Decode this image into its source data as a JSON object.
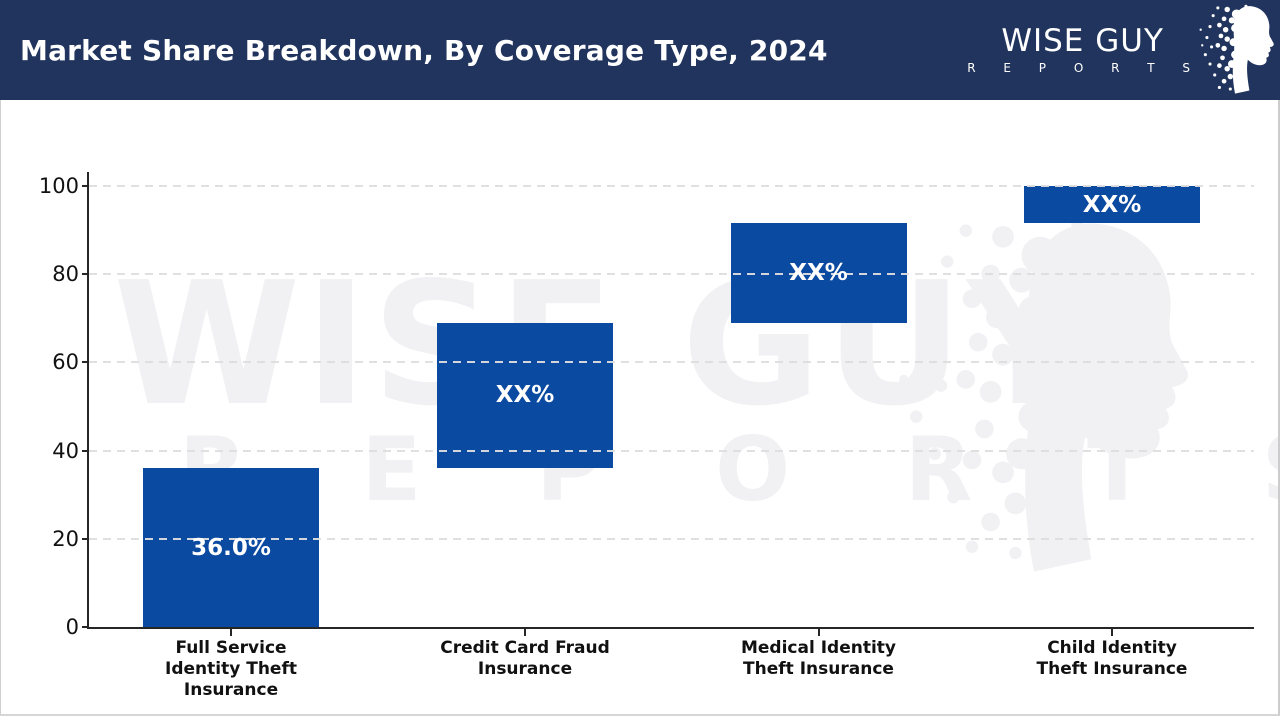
{
  "header": {
    "title": "Market Share Breakdown, By Coverage Type, 2024",
    "logo": {
      "wordmark": "WISE GUY",
      "subtext": "R E P O R T S"
    }
  },
  "watermark": {
    "line1": "WISE GUY",
    "line2": "R E P O R T S"
  },
  "chart_data": {
    "type": "bar",
    "subtype": "waterfall",
    "title": "Market Share Breakdown, By Coverage Type, 2024",
    "categories": [
      "Full Service Identity Theft Insurance",
      "Credit Card Fraud Insurance",
      "Medical Identity Theft Insurance",
      "Child Identity Theft Insurance"
    ],
    "segments": [
      {
        "label_lines": "Full Service\nIdentity Theft\nInsurance",
        "start": 0,
        "end": 36,
        "value_label": "36.0%"
      },
      {
        "label_lines": "Credit Card Fraud\nInsurance",
        "start": 36,
        "end": 69,
        "value_label": "XX%"
      },
      {
        "label_lines": "Medical Identity\nTheft Insurance",
        "start": 69,
        "end": 91.5,
        "value_label": "XX%"
      },
      {
        "label_lines": "Child Identity\nTheft Insurance",
        "start": 91.5,
        "end": 100,
        "value_label": "XX%"
      }
    ],
    "yticks": [
      0,
      20,
      40,
      60,
      80,
      100
    ],
    "ylim": [
      0,
      103
    ],
    "xlabel": "",
    "ylabel": "",
    "grid": "dashed-horizontal",
    "legend": "none",
    "bar_color": "#0B4AA1",
    "value_label_color": "#ffffff"
  },
  "colors": {
    "header_bg": "#21345E",
    "bar": "#0B4AA1",
    "grid": "#dedede",
    "axis": "#262626",
    "watermark": "#f1f1f4"
  }
}
